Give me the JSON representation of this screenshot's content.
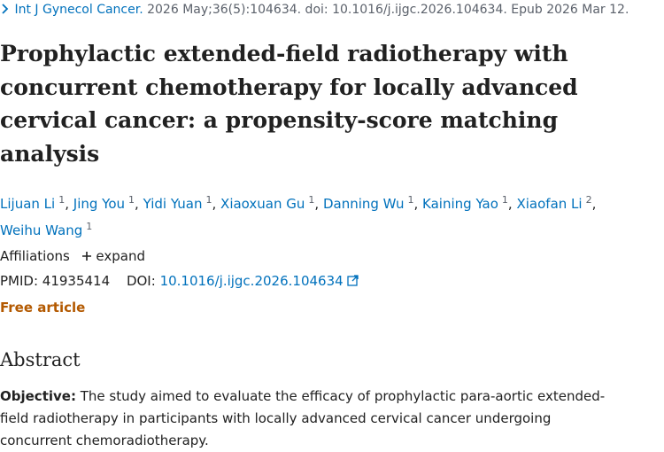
{
  "citation": {
    "journal": "Int J Gynecol Cancer.",
    "details": "2026 May;36(5):104634. doi: 10.1016/j.ijgc.2026.104634. Epub 2026 Mar 12."
  },
  "title": "Prophylactic extended-field radiotherapy with concurrent chemotherapy for locally advanced cervical cancer: a propensity-score matching analysis",
  "author_separator": ",",
  "authors": [
    {
      "name": "Lijuan Li",
      "aff": "1"
    },
    {
      "name": "Jing You",
      "aff": "1"
    },
    {
      "name": "Yidi Yuan",
      "aff": "1"
    },
    {
      "name": "Xiaoxuan Gu",
      "aff": "1"
    },
    {
      "name": "Danning Wu",
      "aff": "1"
    },
    {
      "name": "Kaining Yao",
      "aff": "1"
    },
    {
      "name": "Xiaofan Li",
      "aff": "2"
    },
    {
      "name": "Weihu Wang",
      "aff": "1"
    }
  ],
  "affiliations": {
    "label": "Affiliations",
    "toggle": "expand"
  },
  "ids": {
    "pmid_label": "PMID:",
    "pmid": 41935414,
    "doi_label": "DOI:",
    "doi": "10.1016/j.ijgc.2026.104634"
  },
  "free_article": "Free article",
  "abstract": {
    "heading": "Abstract",
    "objective_label": "Objective:",
    "objective_text": "The study aimed to evaluate the efficacy of prophylactic para-aortic extended-field radiotherapy in participants with locally advanced cervical cancer undergoing concurrent chemoradiotherapy."
  }
}
